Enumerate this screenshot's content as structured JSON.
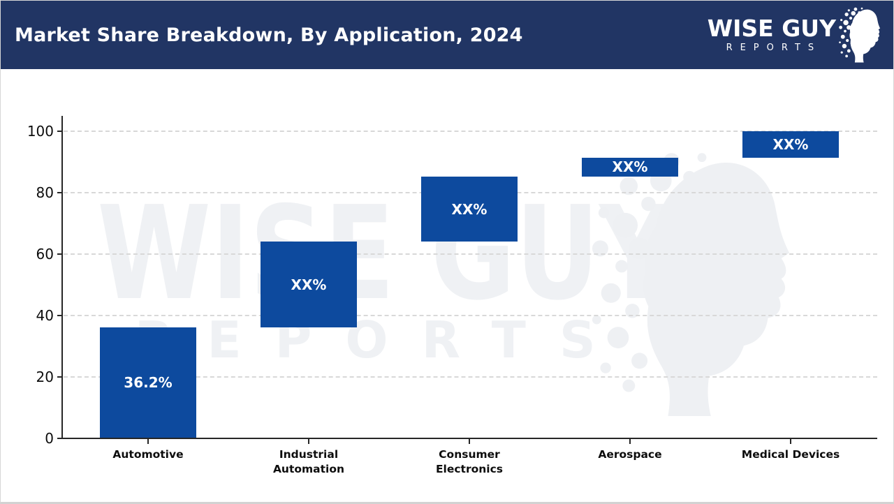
{
  "header": {
    "title": "Market Share Breakdown, By Application, 2024",
    "background_color": "#213564",
    "logo": {
      "line1": "WISE GUY",
      "line2": "REPORTS",
      "icon": "dotted-head-profile"
    }
  },
  "watermark": {
    "line1": "WISE GUY",
    "line2": "REPORTS",
    "icon": "dotted-head-profile",
    "color": "#eff1f4"
  },
  "chart_data": {
    "type": "bar",
    "subtype": "waterfall",
    "title": "Market Share Breakdown, By Application, 2024",
    "categories": [
      "Automotive",
      "Industrial Automation",
      "Consumer Electronics",
      "Aerospace",
      "Medical Devices"
    ],
    "category_lines": [
      [
        "Automotive"
      ],
      [
        "Industrial",
        "Automation"
      ],
      [
        "Consumer",
        "Electronics"
      ],
      [
        "Aerospace"
      ],
      [
        "Medical Devices"
      ]
    ],
    "segments": [
      {
        "category": "Automotive",
        "start": 0,
        "end": 36.2,
        "label": "36.2%"
      },
      {
        "category": "Industrial Automation",
        "start": 36.2,
        "end": 64.0,
        "label": "XX%"
      },
      {
        "category": "Consumer Electronics",
        "start": 64.0,
        "end": 85.2,
        "label": "XX%"
      },
      {
        "category": "Aerospace",
        "start": 85.2,
        "end": 91.4,
        "label": "XX%"
      },
      {
        "category": "Medical Devices",
        "start": 91.4,
        "end": 100.0,
        "label": "XX%"
      }
    ],
    "ylim": [
      0,
      100
    ],
    "yticks": [
      0,
      20,
      40,
      60,
      80,
      100
    ],
    "xlabel": "",
    "ylabel": "",
    "bar_color": "#0d4a9e",
    "bar_label_color": "#ffffff",
    "axis_color": "#262626",
    "grid": "horizontal dashed",
    "gridline_color": "#d8d8d8",
    "legend": "none"
  }
}
